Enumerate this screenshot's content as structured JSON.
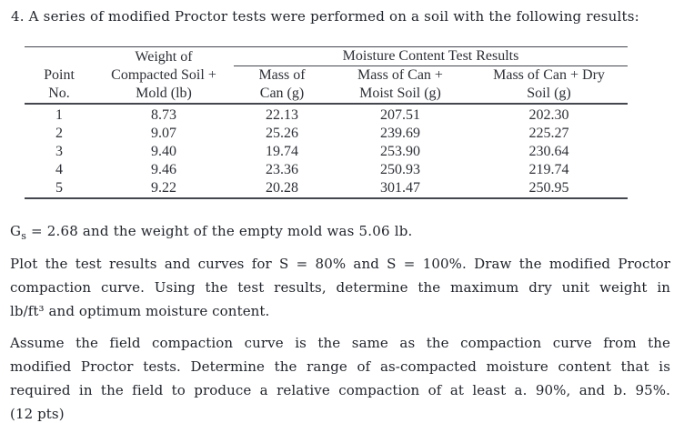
{
  "document": {
    "title": "4. A series of modified Proctor tests were performed on a soil with the following results:",
    "table": {
      "span_header": "Moisture Content Test Results",
      "headers": {
        "point": [
          "Point",
          "No."
        ],
        "weight": [
          "Weight of",
          "Compacted Soil +",
          "Mold (lb)"
        ],
        "mass_can": [
          "Mass of",
          "Can (g)"
        ],
        "mass_moist": [
          "Mass of Can +",
          "Moist Soil (g)"
        ],
        "mass_dry": [
          "Mass of Can + Dry",
          "Soil (g)"
        ]
      },
      "rows": [
        {
          "point": "1",
          "weight": "8.73",
          "mass_can": "22.13",
          "mass_moist": "207.51",
          "mass_dry": "202.30"
        },
        {
          "point": "2",
          "weight": "9.07",
          "mass_can": "25.26",
          "mass_moist": "239.69",
          "mass_dry": "225.27"
        },
        {
          "point": "3",
          "weight": "9.40",
          "mass_can": "19.74",
          "mass_moist": "253.90",
          "mass_dry": "230.64"
        },
        {
          "point": "4",
          "weight": "9.46",
          "mass_can": "23.36",
          "mass_moist": "250.93",
          "mass_dry": "219.74"
        },
        {
          "point": "5",
          "weight": "9.22",
          "mass_can": "20.28",
          "mass_moist": "301.47",
          "mass_dry": "250.95"
        }
      ]
    },
    "gs_note": {
      "symbol": "G",
      "subscript": "s",
      "rest": " = 2.68 and the weight of the empty mold was 5.06 lb."
    },
    "paragraph1": {
      "lines": [
        "Plot the test results and curves for S = 80% and S = 100%. Draw the modified Proctor",
        "compaction curve. Using the test results, determine the maximum dry unit weight in",
        "lb/ft³ and optimum moisture content."
      ]
    },
    "paragraph2": {
      "lines": [
        "Assume the field compaction curve is the same as the compaction curve from the",
        "modified Proctor tests. Determine the range of as-compacted moisture content that is",
        "required in the field to produce a relative compaction of at least a. 90%, and b. 95%.",
        "(12 pts)"
      ]
    },
    "colors": {
      "text": "#20242b",
      "table_text": "#2d3036",
      "rule": "#45474f",
      "background": "#ffffff"
    }
  }
}
